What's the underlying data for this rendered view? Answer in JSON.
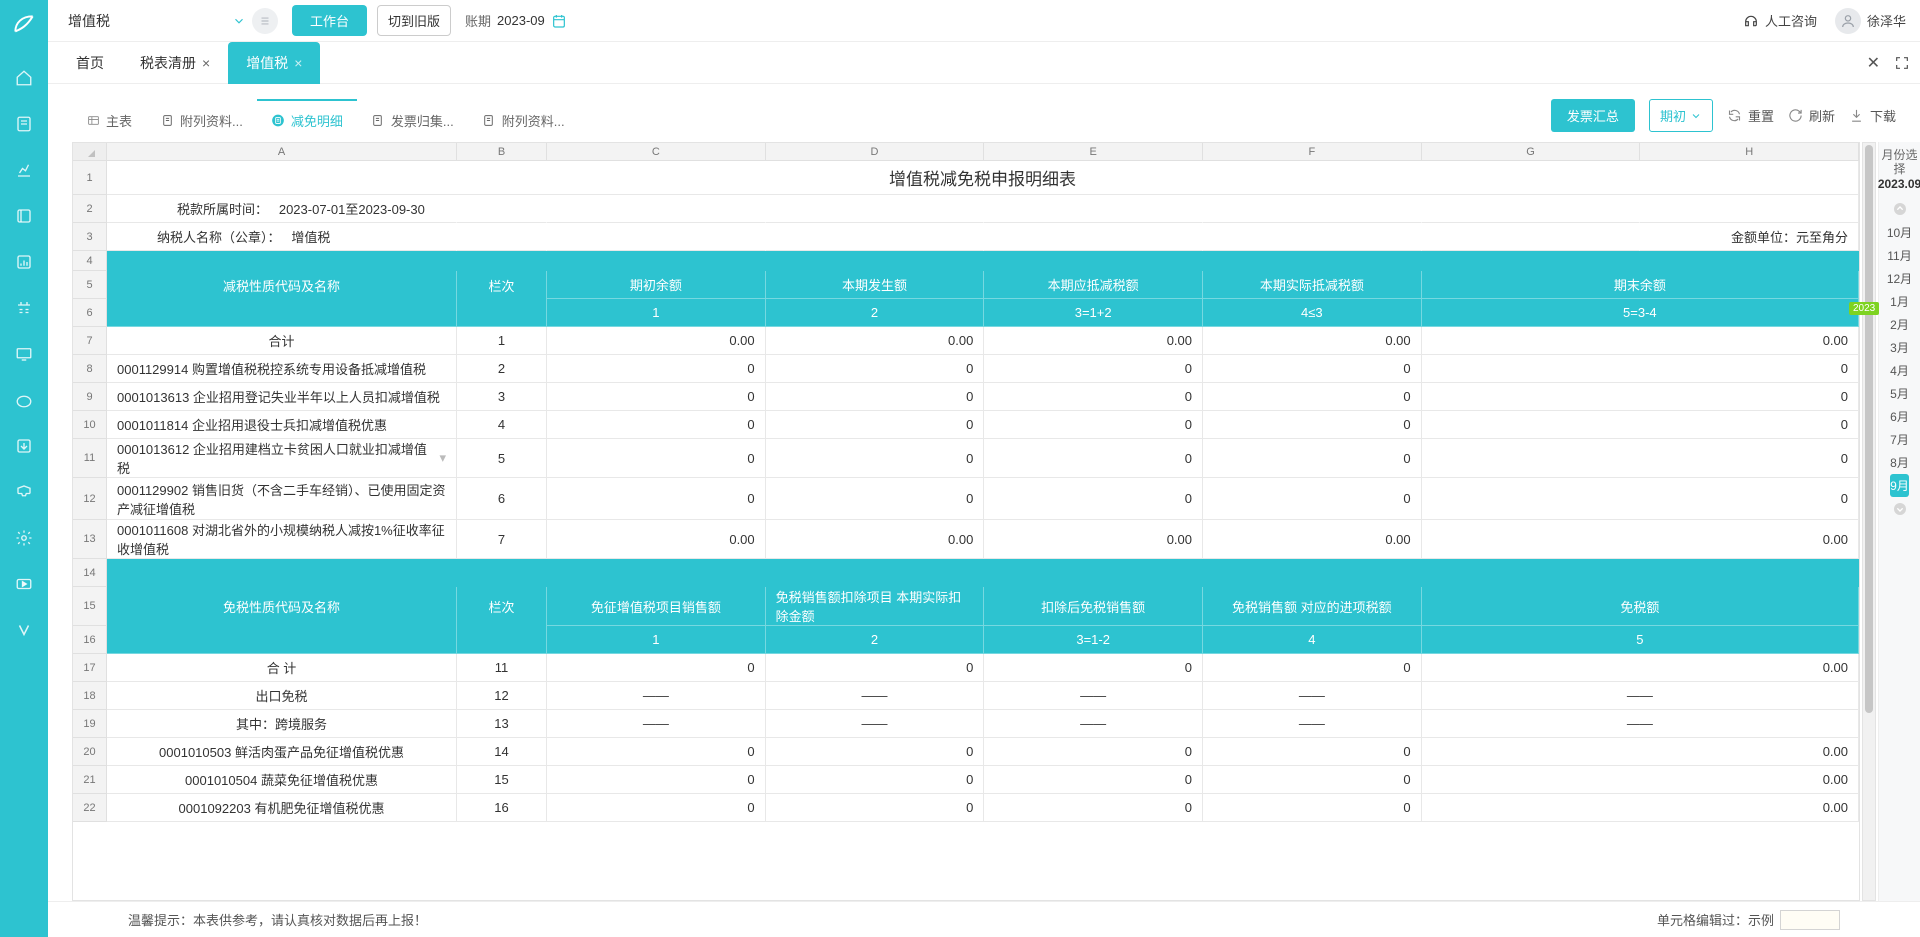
{
  "header": {
    "app_dropdown": "增值税",
    "workspace_btn": "工作台",
    "switch_old_btn": "切到旧版",
    "period_label": "账期",
    "period_value": "2023-09",
    "help_label": "人工咨询",
    "user_name": "徐泽华"
  },
  "page_tabs": {
    "items": [
      {
        "label": "首页",
        "closable": false,
        "active": false
      },
      {
        "label": "税表清册",
        "closable": true,
        "active": false
      },
      {
        "label": "增值税",
        "closable": true,
        "active": true
      }
    ]
  },
  "sheet_tabs": {
    "items": [
      {
        "label": "主表",
        "active": false
      },
      {
        "label": "附列资料...",
        "active": false
      },
      {
        "label": "减免明细",
        "active": true
      },
      {
        "label": "发票归集...",
        "active": false
      },
      {
        "label": "附列资料...",
        "active": false
      }
    ]
  },
  "actions": {
    "invoice_summary": "发票汇总",
    "period_start": "期初",
    "reset": "重置",
    "refresh": "刷新",
    "download": "下载"
  },
  "grid": {
    "col_letters": [
      "A",
      "B",
      "C",
      "D",
      "E",
      "F",
      "G",
      "H"
    ],
    "title": "增值税减免税申报明细表",
    "tax_period_label": "税款所属时间：",
    "tax_period_value": "2023-07-01至2023-09-30",
    "taxpayer_label": "纳税人名称（公章）：",
    "taxpayer_value": "增值税",
    "unit_label": "金额单位：元至角分",
    "section1": {
      "r1c1": "减税性质代码及名称",
      "r1c2": "栏次",
      "r1c3": "期初余额",
      "r1c4": "本期发生额",
      "r1c5": "本期应抵减税额",
      "r1c6": "本期实际抵减税额",
      "r1c7": "期末余额",
      "r2c3": "1",
      "r2c4": "2",
      "r2c5": "3=1+2",
      "r2c6": "4≤3",
      "r2c7": "5=3-4"
    },
    "rows1": [
      {
        "n": "7",
        "a": "合计",
        "b": "1",
        "c": "0.00",
        "d": "0.00",
        "e": "0.00",
        "f": "0.00",
        "g": "0.00"
      },
      {
        "n": "8",
        "a": "0001129914 购置增值税税控系统专用设备抵减增值税",
        "b": "2",
        "c": "0",
        "d": "0",
        "e": "0",
        "f": "0",
        "g": "0"
      },
      {
        "n": "9",
        "a": "0001013613 企业招用登记失业半年以上人员扣减增值税",
        "b": "3",
        "c": "0",
        "d": "0",
        "e": "0",
        "f": "0",
        "g": "0"
      },
      {
        "n": "10",
        "a": "0001011814 企业招用退役士兵扣减增值税优惠",
        "b": "4",
        "c": "0",
        "d": "0",
        "e": "0",
        "f": "0",
        "g": "0"
      },
      {
        "n": "11",
        "a": "0001013612 企业招用建档立卡贫困人口就业扣减增值税",
        "b": "5",
        "c": "0",
        "d": "0",
        "e": "0",
        "f": "0",
        "g": "0",
        "dd": true
      },
      {
        "n": "12",
        "a": "0001129902 销售旧货（不含二手车经销）、已使用固定资产减征增值税",
        "b": "6",
        "c": "0",
        "d": "0",
        "e": "0",
        "f": "0",
        "g": "0",
        "big": true
      },
      {
        "n": "13",
        "a": "0001011608 对湖北省外的小规模纳税人减按1%征收率征收增值税",
        "b": "7",
        "c": "0.00",
        "d": "0.00",
        "e": "0.00",
        "f": "0.00",
        "g": "0.00"
      }
    ],
    "section2": {
      "r1c1": "免税性质代码及名称",
      "r1c2": "栏次",
      "r1c3": "免征增值税项目销售额",
      "r1c4": "免税销售额扣除项目 本期实际扣除金额",
      "r1c5": "扣除后免税销售额",
      "r1c6": "免税销售额 对应的进项税额",
      "r1c7": "免税额",
      "r2c3": "1",
      "r2c4": "2",
      "r2c5": "3=1-2",
      "r2c6": "4",
      "r2c7": "5"
    },
    "rows2": [
      {
        "n": "17",
        "a": "合 计",
        "b": "11",
        "c": "0",
        "d": "0",
        "e": "0",
        "f": "0",
        "g": "0.00",
        "center_a": true
      },
      {
        "n": "18",
        "a": "出口免税",
        "b": "12",
        "c": "——",
        "d": "——",
        "e": "——",
        "f": "——",
        "g": "——",
        "center_a": true,
        "center_vals": true
      },
      {
        "n": "19",
        "a": "其中：跨境服务",
        "b": "13",
        "c": "——",
        "d": "——",
        "e": "——",
        "f": "——",
        "g": "——",
        "center_a": true,
        "center_vals": true
      },
      {
        "n": "20",
        "a": "0001010503 鲜活肉蛋产品免征增值税优惠",
        "b": "14",
        "c": "0",
        "d": "0",
        "e": "0",
        "f": "0",
        "g": "0.00",
        "center_a": true
      },
      {
        "n": "21",
        "a": "0001010504 蔬菜免征增值税优惠",
        "b": "15",
        "c": "0",
        "d": "0",
        "e": "0",
        "f": "0",
        "g": "0.00",
        "center_a": true
      },
      {
        "n": "22",
        "a": "0001092203 有机肥免征增值税优惠",
        "b": "16",
        "c": "0",
        "d": "0",
        "e": "0",
        "f": "0",
        "g": "0.00",
        "center_a": true
      }
    ]
  },
  "month_panel": {
    "title": "月份选择",
    "year": "2023.09",
    "badge": "2023",
    "items": [
      "10月",
      "11月",
      "12月",
      "1月",
      "2月",
      "3月",
      "4月",
      "5月",
      "6月",
      "7月",
      "8月",
      "9月"
    ],
    "selected_index": 11
  },
  "footer": {
    "hint": "温馨提示：本表供参考，请认真核对数据后再上报！",
    "edit_label": "单元格编辑过：示例"
  },
  "colors": {
    "accent": "#2dc3d0",
    "green_badge": "#7ed321"
  }
}
